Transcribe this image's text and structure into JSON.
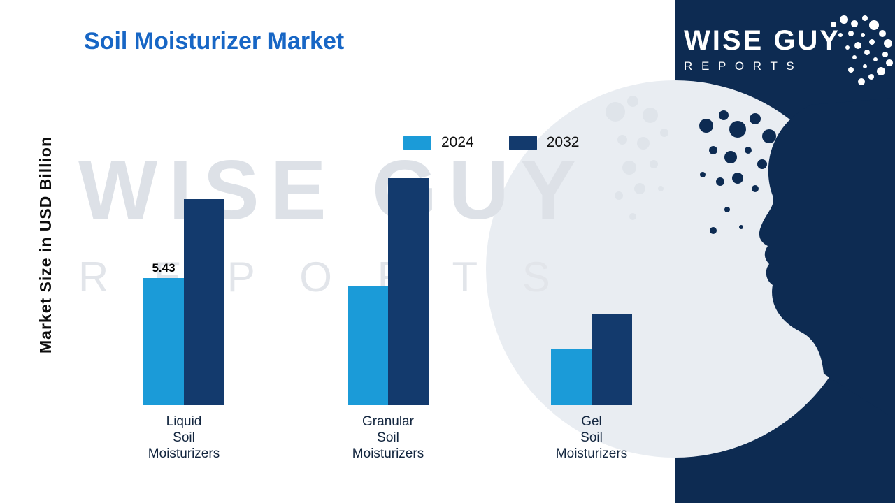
{
  "title": "Soil Moisturizer Market",
  "ylabel": "Market Size in USD Billion",
  "watermark": {
    "line1": "WISE GUY",
    "line2": "R E P O R T S"
  },
  "logo": {
    "line1": "WISE GUY",
    "line2": "R E P O R T S"
  },
  "legend": [
    {
      "label": "2024",
      "color": "#1b9bd8"
    },
    {
      "label": "2032",
      "color": "#133a6d"
    }
  ],
  "chart_data": {
    "type": "bar",
    "title": "Soil Moisturizer Market",
    "ylabel": "Market Size in USD Billion",
    "categories": [
      "Liquid Soil Moisturizers",
      "Granular Soil Moisturizers",
      "Gel Soil Moisturizers"
    ],
    "series": [
      {
        "name": "2024",
        "color": "#1b9bd8",
        "values": [
          5.43,
          5.1,
          2.4
        ],
        "labels": [
          "5.43",
          "",
          ""
        ]
      },
      {
        "name": "2032",
        "color": "#133a6d",
        "values": [
          8.8,
          9.7,
          3.9
        ],
        "labels": [
          "",
          "",
          ""
        ]
      }
    ],
    "ylim": [
      0,
      10
    ],
    "grid": false,
    "legend_position": "top",
    "value_labels_shown": [
      "5.43"
    ]
  }
}
